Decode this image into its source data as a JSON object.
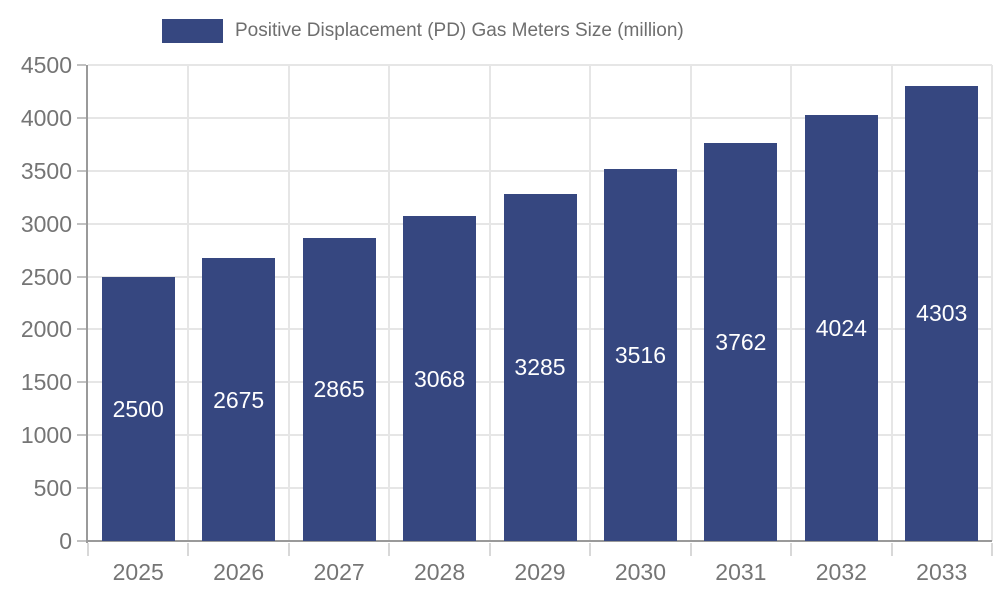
{
  "legend": {
    "label": "Positive Displacement (PD) Gas Meters Size (million)"
  },
  "chart_data": {
    "type": "bar",
    "title": "Positive Displacement (PD) Gas Meters Size (million)",
    "categories": [
      "2025",
      "2026",
      "2027",
      "2028",
      "2029",
      "2030",
      "2031",
      "2032",
      "2033"
    ],
    "values": [
      2500,
      2675,
      2865,
      3068,
      3285,
      3516,
      3762,
      4024,
      4303
    ],
    "xlabel": "",
    "ylabel": "",
    "ylim": [
      0,
      4500
    ],
    "yticks": [
      0,
      500,
      1000,
      1500,
      2000,
      2500,
      3000,
      3500,
      4000,
      4500
    ],
    "grid": true,
    "legend_position": "top-center",
    "colors": {
      "bar": "#364780",
      "value_label": "#ffffff",
      "tick_label": "#757575",
      "legend_text": "#6e6e6e",
      "gridline": "#e6e6e6",
      "axis": "#9a9a9a"
    }
  }
}
